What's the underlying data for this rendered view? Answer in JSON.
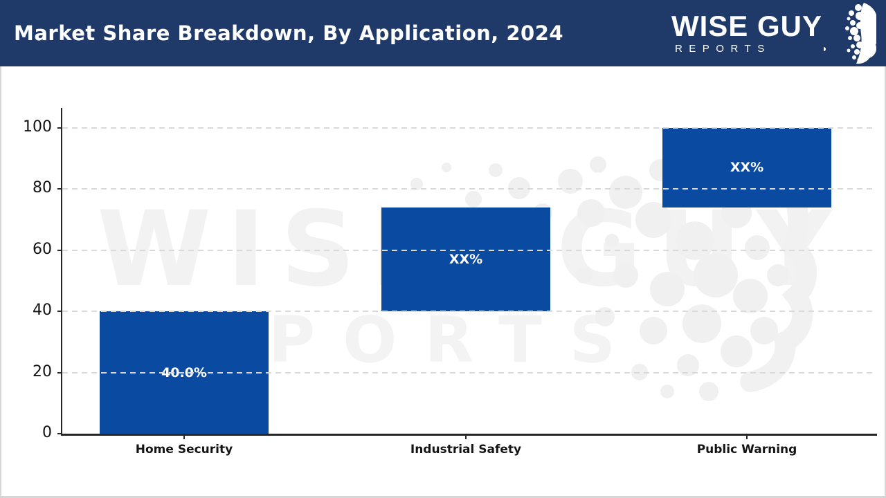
{
  "header": {
    "title": "Market Share Breakdown, By Application, 2024",
    "logo": {
      "line1": "WISE GUY",
      "line2": "REPORTS"
    }
  },
  "watermark": {
    "line1": "WISE GUY",
    "line2": "REPORTS"
  },
  "chart_data": {
    "type": "bar",
    "subtype": "waterfall",
    "title": "Market Share Breakdown, By Application, 2024",
    "categories": [
      "Home Security",
      "Industrial Safety",
      "Public Warning"
    ],
    "segments": [
      {
        "category": "Home Security",
        "start": 0,
        "end": 40,
        "label": "40.0%"
      },
      {
        "category": "Industrial Safety",
        "start": 40,
        "end": 74,
        "label": "XX%"
      },
      {
        "category": "Public Warning",
        "start": 74,
        "end": 100,
        "label": "XX%"
      }
    ],
    "ylim": [
      0,
      100
    ],
    "yticks": [
      0,
      20,
      40,
      60,
      80,
      100
    ],
    "grid": "horizontal-dashed",
    "legend": "none",
    "xlabel": "",
    "ylabel": ""
  },
  "colors": {
    "header_bg": "#1f3a68",
    "bar": "#0b4aa1",
    "grid": "#d9d9d9",
    "axis": "#262626",
    "bar_label": "#ffffff"
  }
}
